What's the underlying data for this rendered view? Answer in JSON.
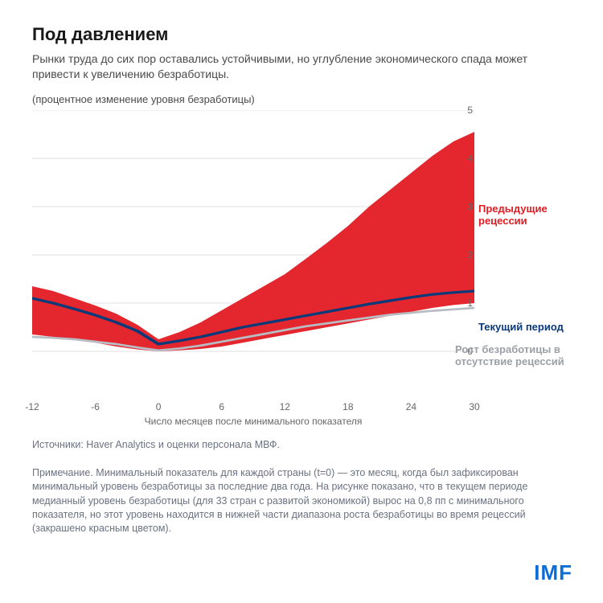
{
  "title": "Под давлением",
  "subtitle": "Рынки труда до сих пор оставались устойчивыми, но углубление экономического спада может привести к увеличению безработицы.",
  "axis_unit": "(процентное изменение уровня безработицы)",
  "xaxis_title": "Число месяцев после минимального показателя",
  "chart": {
    "type": "line-with-band",
    "xlim": [
      -12,
      30
    ],
    "ylim": [
      -1,
      5
    ],
    "yticks": [
      0,
      1,
      2,
      3,
      4,
      5
    ],
    "xticks": [
      -12,
      -6,
      0,
      6,
      12,
      18,
      24,
      30
    ],
    "grid_color": "#d7d9dc",
    "background_color": "#ffffff",
    "band": {
      "label": "Предыдущие рецессии",
      "color": "#e31b23",
      "opacity": 0.95,
      "x": [
        -12,
        -10,
        -8,
        -6,
        -4,
        -2,
        0,
        2,
        4,
        6,
        8,
        10,
        12,
        14,
        16,
        18,
        20,
        22,
        24,
        26,
        28,
        30
      ],
      "upper": [
        1.35,
        1.25,
        1.1,
        0.95,
        0.78,
        0.55,
        0.25,
        0.4,
        0.6,
        0.85,
        1.1,
        1.35,
        1.6,
        1.92,
        2.25,
        2.6,
        3.0,
        3.35,
        3.7,
        4.05,
        4.35,
        4.55
      ],
      "lower": [
        0.35,
        0.3,
        0.25,
        0.18,
        0.1,
        0.04,
        0.0,
        0.02,
        0.05,
        0.1,
        0.18,
        0.26,
        0.34,
        0.42,
        0.5,
        0.58,
        0.66,
        0.74,
        0.82,
        0.9,
        0.96,
        1.0
      ]
    },
    "series": [
      {
        "name": "current",
        "label": "Текущий период",
        "color": "#0b3a7a",
        "width": 3,
        "x": [
          -12,
          -10,
          -8,
          -6,
          -4,
          -2,
          0,
          2,
          4,
          6,
          8,
          10,
          12,
          14,
          16,
          18,
          20,
          22,
          24,
          26,
          28,
          30
        ],
        "y": [
          1.1,
          1.0,
          0.88,
          0.75,
          0.6,
          0.42,
          0.15,
          0.22,
          0.3,
          0.4,
          0.5,
          0.58,
          0.66,
          0.74,
          0.82,
          0.9,
          0.98,
          1.05,
          1.12,
          1.18,
          1.22,
          1.25
        ]
      },
      {
        "name": "no_recession",
        "label": "Рост безработицы в отсутствие рецессий",
        "color": "#b8bdc4",
        "width": 2.5,
        "x": [
          -12,
          -10,
          -8,
          -6,
          -4,
          -2,
          0,
          2,
          4,
          6,
          8,
          10,
          12,
          14,
          16,
          18,
          20,
          22,
          24,
          26,
          28,
          30
        ],
        "y": [
          0.3,
          0.28,
          0.25,
          0.2,
          0.15,
          0.08,
          0.02,
          0.06,
          0.12,
          0.2,
          0.28,
          0.36,
          0.44,
          0.52,
          0.58,
          0.64,
          0.7,
          0.76,
          0.8,
          0.84,
          0.87,
          0.9
        ]
      }
    ]
  },
  "legend": {
    "band": "Предыдущие рецессии",
    "current": "Текущий период",
    "no_recession": "Рост безработицы в отсутствие рецессий"
  },
  "sources": "Источники: Haver Analytics и оценки персонала МВФ.",
  "note": "Примечание. Минимальный показатель для каждой страны (t=0) — это месяц, когда был зафиксирован минимальный уровень безработицы за последние два года. На рисунке показано, что в текущем периоде медианный уровень безработицы (для 33 стран с развитой экономикой) вырос на 0,8 пп с минимального показателя, но этот уровень находится в нижней части диапазона роста безработицы во время рецессий (закрашено красным цветом).",
  "logo": "IMF"
}
